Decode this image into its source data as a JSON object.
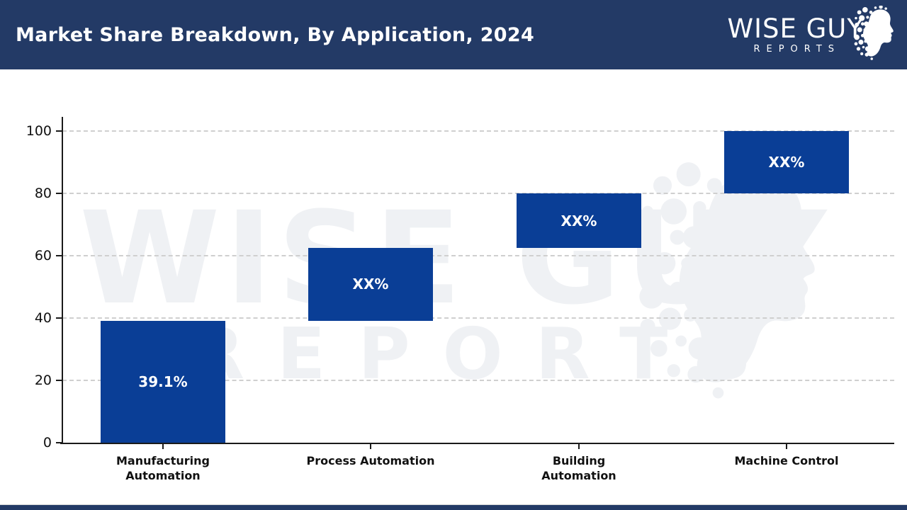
{
  "header": {
    "title": "Market Share Breakdown, By Application, 2024",
    "logo": {
      "name1": "WISE GUY",
      "name2": "REPORTS"
    }
  },
  "watermark": {
    "line1": "WISE GUY",
    "line2": "REPORTS"
  },
  "chart_data": {
    "type": "bar",
    "subtype": "waterfall",
    "title": "Market Share Breakdown, By Application, 2024",
    "categories": [
      "Manufacturing\nAutomation",
      "Process Automation",
      "Building\nAutomation",
      "Machine Control"
    ],
    "segments": [
      {
        "category": "Manufacturing\nAutomation",
        "start": 0,
        "end": 39.1,
        "label": "39.1%"
      },
      {
        "category": "Process Automation",
        "start": 39.1,
        "end": 62.5,
        "label": "XX%"
      },
      {
        "category": "Building\nAutomation",
        "start": 62.5,
        "end": 80,
        "label": "XX%"
      },
      {
        "category": "Machine Control",
        "start": 80,
        "end": 100,
        "label": "XX%"
      }
    ],
    "xlabel": "",
    "ylabel": "",
    "ylim": [
      0,
      100
    ],
    "yticks": [
      0,
      20,
      40,
      60,
      80,
      100
    ],
    "grid": true,
    "legend": false
  },
  "colors": {
    "header_bg": "#233a66",
    "bar": "#0a3e96",
    "gridline": "#cfcfcf",
    "axis": "#1a1a1a",
    "watermark": "#eff1f4"
  }
}
